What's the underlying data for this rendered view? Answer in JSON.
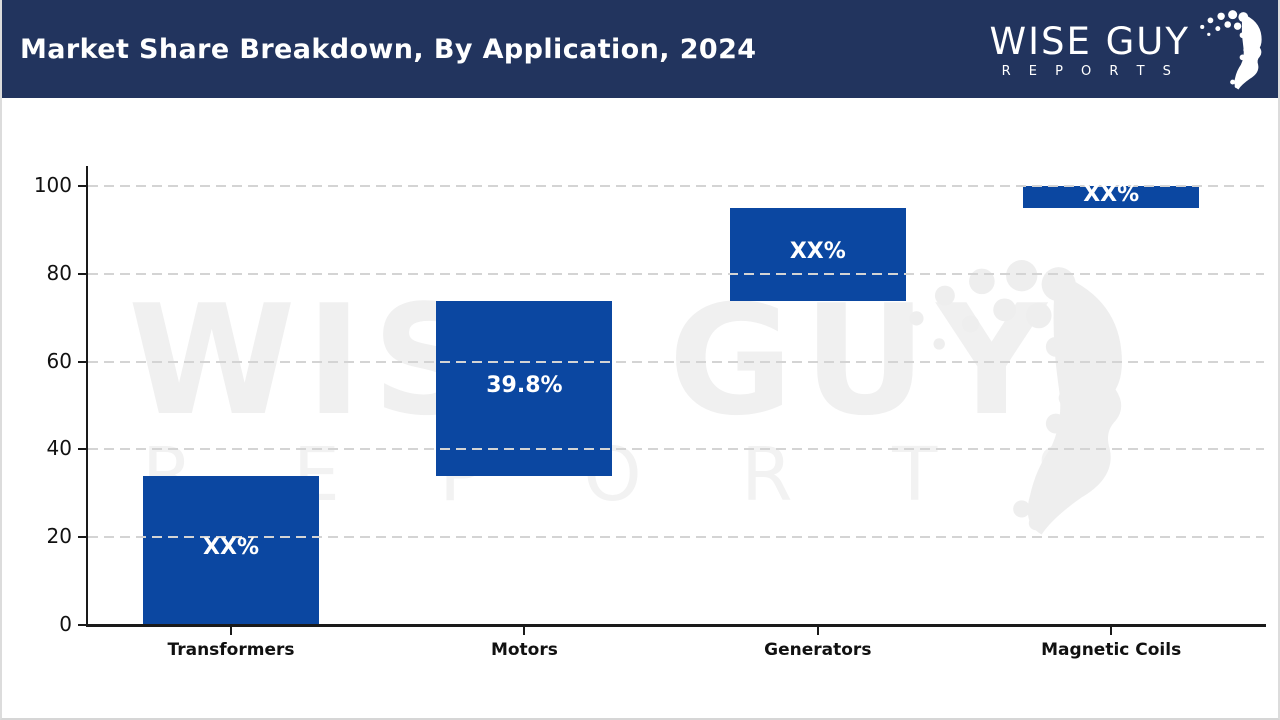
{
  "header": {
    "title": "Market Share Breakdown, By Application, 2024",
    "logo": {
      "name": "WISE GUY",
      "sub": "R E P O R T S"
    }
  },
  "watermark": {
    "name": "WISE GUY",
    "sub": "R E P O R T S"
  },
  "chart_data": {
    "type": "bar",
    "subtype": "waterfall (stacked percentage breakdown)",
    "title": "Market Share Breakdown, By Application, 2024",
    "categories": [
      "Transformers",
      "Motors",
      "Generators",
      "Magnetic Coils"
    ],
    "segments": [
      {
        "category": "Transformers",
        "start": 0,
        "end": 34,
        "label": "XX%"
      },
      {
        "category": "Motors",
        "start": 34,
        "end": 73.8,
        "label": "39.8%"
      },
      {
        "category": "Generators",
        "start": 73.8,
        "end": 95,
        "label": "XX%"
      },
      {
        "category": "Magnetic Coils",
        "start": 95,
        "end": 100,
        "label": "XX%"
      }
    ],
    "y_ticks": [
      0,
      20,
      40,
      60,
      80,
      100
    ],
    "ylim": [
      0,
      104
    ],
    "xlabel": "",
    "ylabel": "",
    "grid": "horizontal-dashed",
    "legend_position": "none",
    "colors": {
      "bar": "#0B47A1",
      "bar_label": "#FFFFFF",
      "axis": "#1A1A1A",
      "gridline": "#D4D4D4",
      "header_bg": "#22345E",
      "watermark": "#F0F0F0"
    }
  }
}
